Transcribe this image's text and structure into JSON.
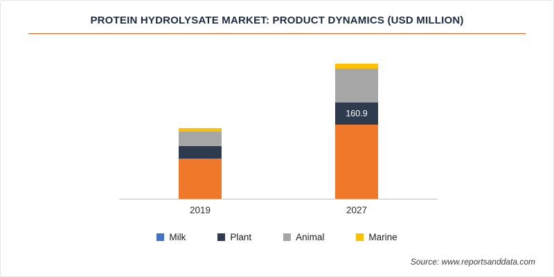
{
  "header": {
    "title": "PROTEIN HYDROLYSATE MARKET: PRODUCT DYNAMICS (USD MILLION)"
  },
  "chart_data": {
    "type": "bar",
    "stacked": true,
    "title": "PROTEIN HYDROLYSATE MARKET: PRODUCT DYNAMICS (USD MILLION)",
    "xlabel": "",
    "ylabel": "",
    "value_unit": "USD Million",
    "grid": false,
    "legend_position": "bottom",
    "categories": [
      "2019",
      "2027"
    ],
    "series": [
      {
        "name": "Milk",
        "legend_color": "#4472c4",
        "bar_color": "#f0782a",
        "values": [
          297,
          538
        ],
        "labels": [
          "",
          ""
        ]
      },
      {
        "name": "Plant",
        "legend_color": "#2e3b4e",
        "bar_color": "#2e3b4e",
        "values": [
          90,
          160.9
        ],
        "labels": [
          "",
          "160.9"
        ]
      },
      {
        "name": "Animal",
        "legend_color": "#a6a6a6",
        "bar_color": "#a6a6a6",
        "values": [
          101,
          246
        ],
        "labels": [
          "",
          ""
        ]
      },
      {
        "name": "Marine",
        "legend_color": "#ffc000",
        "bar_color": "#ffc000",
        "values": [
          25,
          35
        ],
        "labels": [
          "",
          ""
        ]
      }
    ]
  },
  "footer": {
    "source": "Source: www.reportsanddata.com"
  }
}
